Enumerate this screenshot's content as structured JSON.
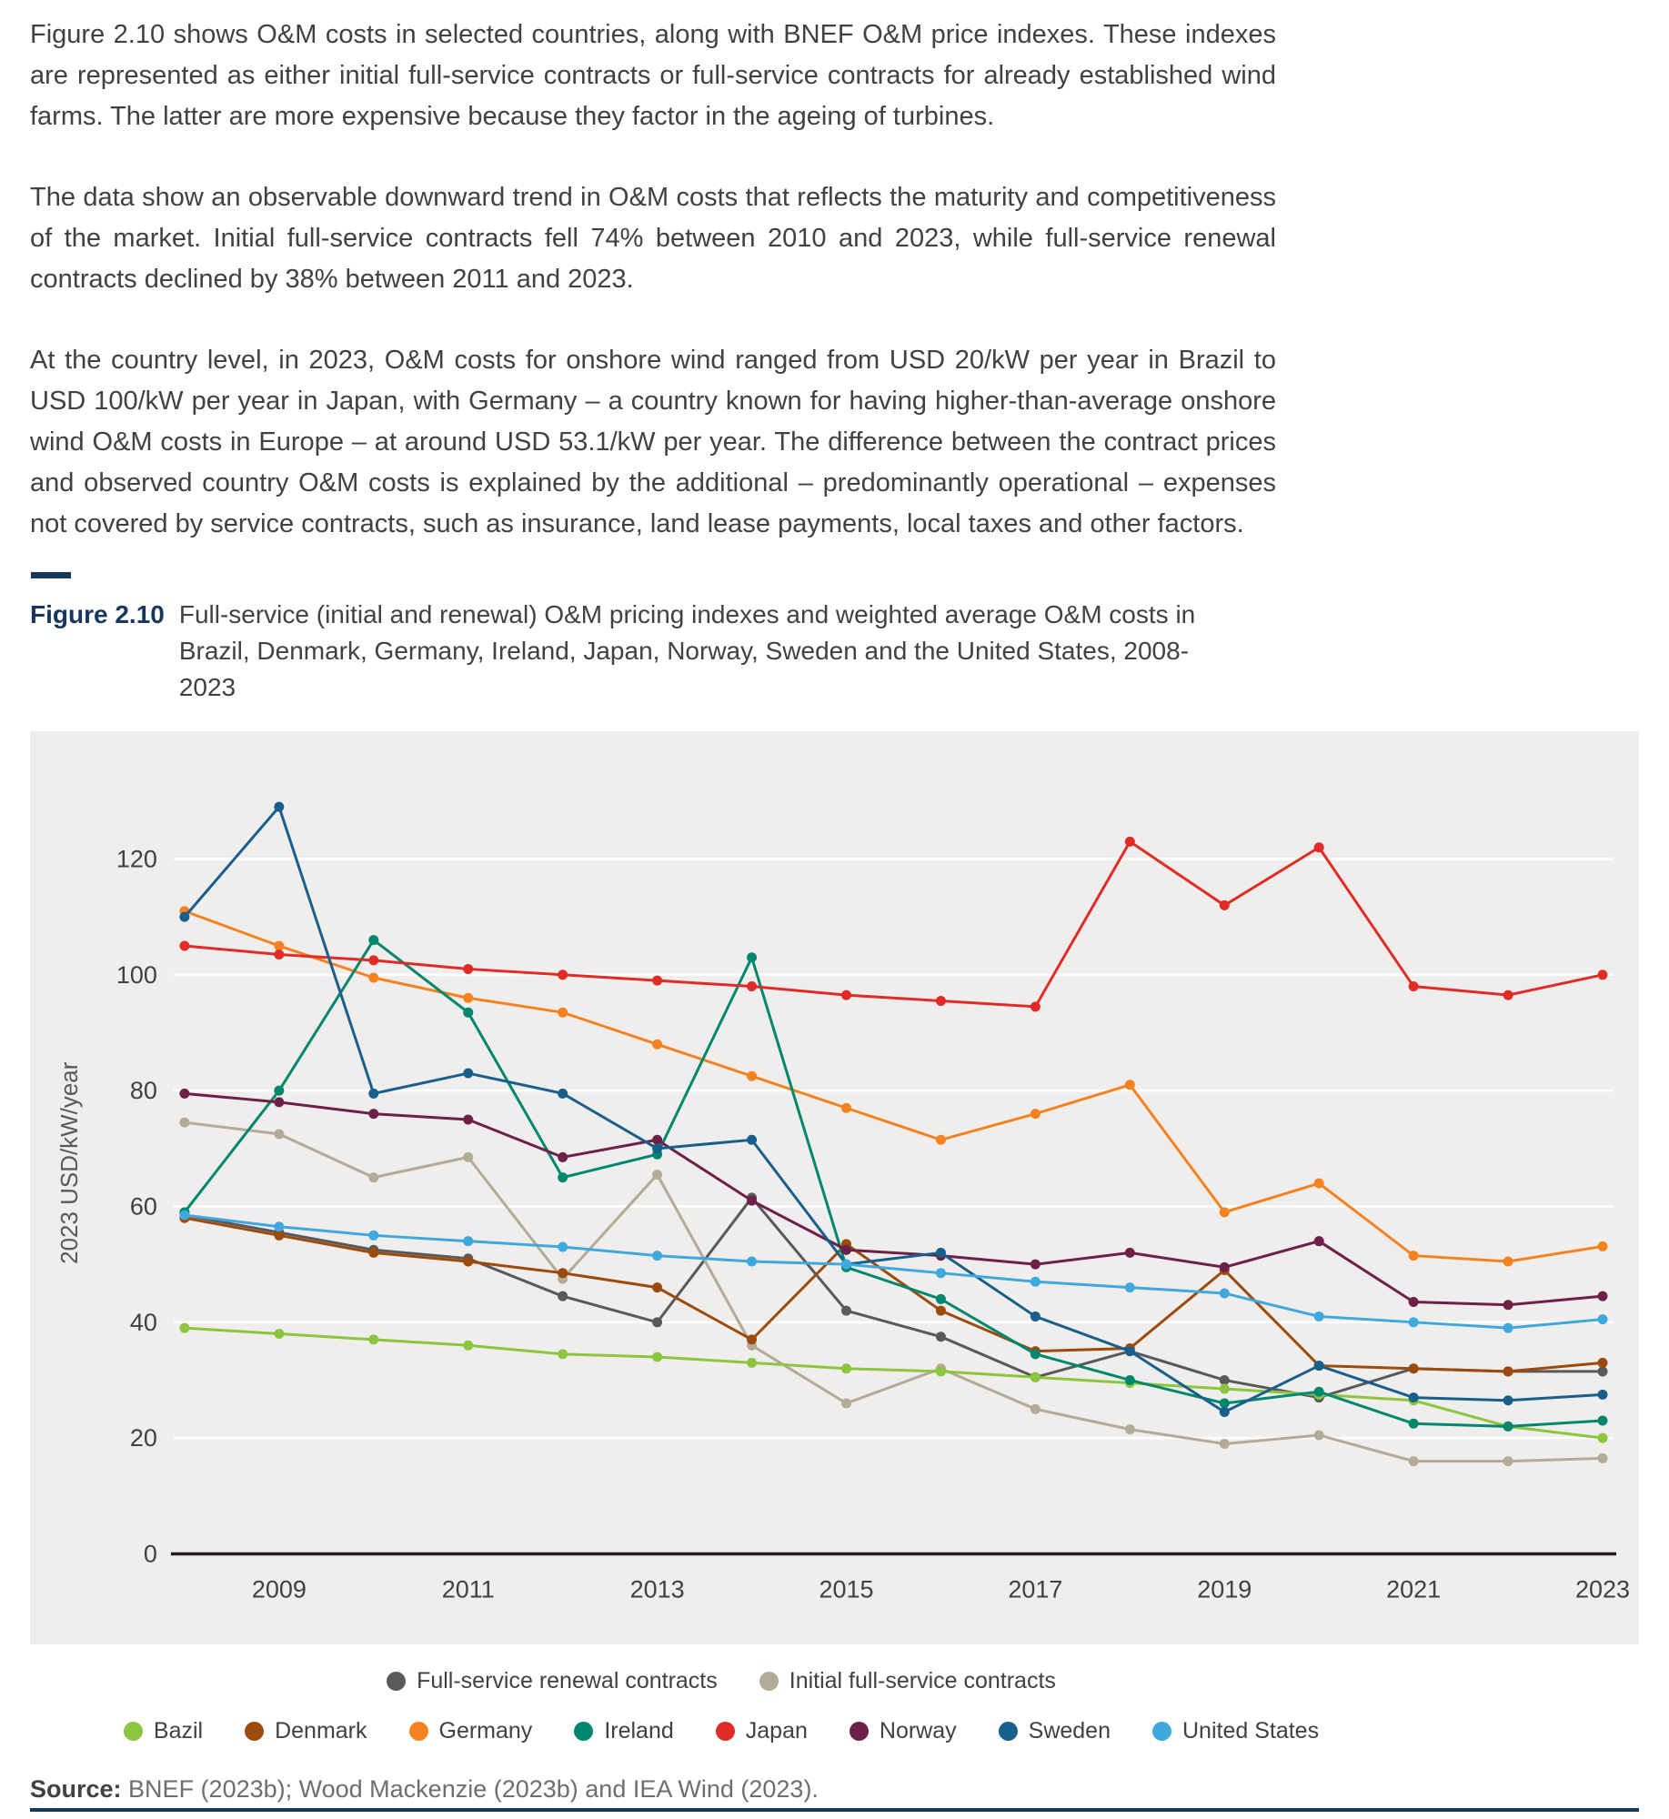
{
  "page": {
    "paragraphs": [
      "Figure 2.10 shows O&M costs in selected countries, along with BNEF O&M price indexes. These indexes are represented as either initial full-service contracts or full-service contracts for already established wind farms. The latter are more expensive because they factor in the ageing of turbines.",
      "The data show an observable downward trend in O&M costs that reflects the maturity and competitiveness of the market. Initial full-service contracts fell 74% between 2010 and 2023, while full-service renewal contracts declined by 38% between 2011 and 2023.",
      "At the country level, in 2023, O&M costs for onshore wind ranged from USD 20/kW per year in Brazil to USD 100/kW per year in Japan, with Germany – a country known for having higher-than-average onshore wind O&M costs in Europe – at around USD 53.1/kW per year. The difference between the contract prices and observed country O&M costs is explained by the additional – predominantly operational – expenses not covered by service contracts, such as insurance, land lease payments, local taxes and other factors."
    ],
    "figure_label": "Figure 2.10",
    "figure_caption": "Full-service (initial and renewal) O&M pricing indexes and weighted average O&M costs in Brazil, Denmark, Germany, Ireland, Japan, Norway, Sweden and the United States, 2008-2023",
    "source_label": "Source:",
    "source_text": "BNEF (2023b); Wood Mackenzie (2023b) and IEA Wind (2023)."
  },
  "chart_data": {
    "type": "line",
    "title": "Full-service (initial and renewal) O&M pricing indexes and weighted average O&M costs, 2008-2023",
    "ylabel": "2023 USD/kW/year",
    "xlabel": "",
    "grid": true,
    "legend_position": "bottom",
    "background": "#efeeec",
    "x": [
      2008,
      2009,
      2010,
      2011,
      2012,
      2013,
      2014,
      2015,
      2016,
      2017,
      2018,
      2019,
      2020,
      2021,
      2022,
      2023
    ],
    "x_tick_labels": [
      "2009",
      "2011",
      "2013",
      "2015",
      "2017",
      "2019",
      "2021",
      "2023"
    ],
    "y_ticks": [
      0,
      20,
      40,
      60,
      80,
      100,
      120
    ],
    "ylim": [
      0,
      135
    ],
    "series": [
      {
        "name": "Full-service renewal contracts",
        "color": "#58595b",
        "values": [
          58.5,
          55.5,
          52.5,
          51,
          44.5,
          40,
          61.5,
          42,
          37.5,
          30.5,
          35,
          30,
          27,
          32,
          31.5,
          31.5
        ]
      },
      {
        "name": "Initial full-service contracts",
        "color": "#b3aa97",
        "values": [
          74.5,
          72.5,
          65,
          68.5,
          47.5,
          65.5,
          36,
          26,
          32,
          25,
          21.5,
          19,
          20.5,
          16,
          16,
          16.5
        ]
      },
      {
        "name": "Bazil",
        "color": "#8cc63e",
        "values": [
          39,
          38,
          37,
          36,
          34.5,
          34,
          33,
          32,
          31.5,
          30.5,
          29.5,
          28.5,
          27.5,
          26.5,
          22,
          20
        ]
      },
      {
        "name": "Denmark",
        "color": "#9d4a0d",
        "values": [
          58,
          55,
          52,
          50.5,
          48.5,
          46,
          37,
          53.5,
          42,
          35,
          35.5,
          49,
          32.5,
          32,
          31.5,
          33
        ]
      },
      {
        "name": "Germany",
        "color": "#f58220",
        "values": [
          111,
          105,
          99.5,
          96,
          93.5,
          88,
          82.5,
          77,
          71.5,
          76,
          81,
          59,
          64,
          51.5,
          50.5,
          53.1
        ]
      },
      {
        "name": "Ireland",
        "color": "#00876e",
        "values": [
          59,
          80,
          106,
          93.5,
          65,
          69,
          103,
          49.5,
          44,
          34.5,
          30,
          26,
          28,
          22.5,
          22,
          23
        ]
      },
      {
        "name": "Japan",
        "color": "#e02b27",
        "values": [
          105,
          103.5,
          102.5,
          101,
          100,
          99,
          98,
          96.5,
          95.5,
          94.5,
          123,
          112,
          122,
          98,
          96.5,
          100
        ]
      },
      {
        "name": "Norway",
        "color": "#6d2048",
        "values": [
          79.5,
          78,
          76,
          75,
          68.5,
          71.5,
          61,
          52.5,
          51.5,
          50,
          52,
          49.5,
          54,
          43.5,
          43,
          44.5
        ]
      },
      {
        "name": "Sweden",
        "color": "#195f8c",
        "values": [
          110,
          129,
          79.5,
          83,
          79.5,
          70,
          71.5,
          50,
          52,
          41,
          35,
          24.5,
          32.5,
          27,
          26.5,
          27.5
        ]
      },
      {
        "name": "United States",
        "color": "#3fa8dc",
        "values": [
          58.5,
          56.5,
          55,
          54,
          53,
          51.5,
          50.5,
          50,
          48.5,
          47,
          46,
          45,
          41,
          40,
          39,
          40.5
        ]
      }
    ]
  }
}
